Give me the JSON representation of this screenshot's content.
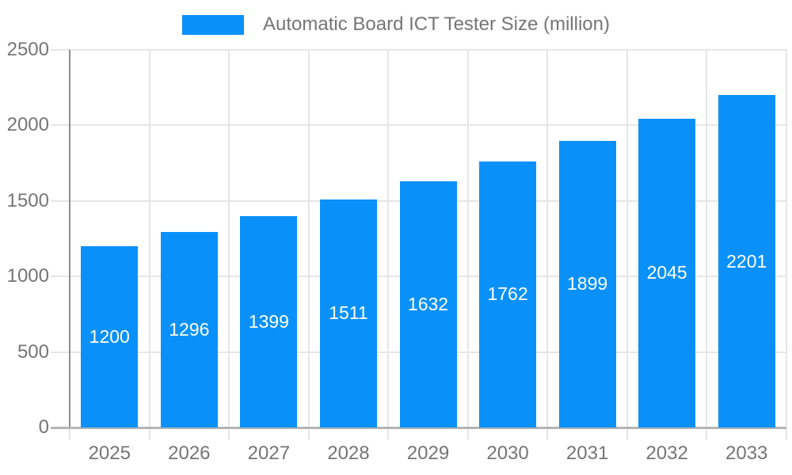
{
  "chart_data": {
    "type": "bar",
    "title": "",
    "legend": "Automatic Board ICT Tester Size (million)",
    "legend_position": "top-center",
    "categories": [
      "2025",
      "2026",
      "2027",
      "2028",
      "2029",
      "2030",
      "2031",
      "2032",
      "2033"
    ],
    "series": [
      {
        "name": "Automatic Board ICT Tester Size (million)",
        "values": [
          1200,
          1296,
          1399,
          1511,
          1632,
          1762,
          1899,
          2045,
          2201
        ]
      }
    ],
    "values": [
      1200,
      1296,
      1399,
      1511,
      1632,
      1762,
      1899,
      2045,
      2201
    ],
    "xlabel": "",
    "ylabel": "",
    "ylim": [
      0,
      2500
    ],
    "yticks": [
      0,
      500,
      1000,
      1500,
      2000,
      2500
    ],
    "grid": true,
    "bar_labels_inside": true
  },
  "colors": {
    "bar": "#0a91f9",
    "axis_text": "#757575",
    "bar_label_text": "#ffffff",
    "gridline": "#e6e6e6",
    "y_axis_line": "#8f8f8f",
    "x_axis_line": "#b5b5b5"
  }
}
